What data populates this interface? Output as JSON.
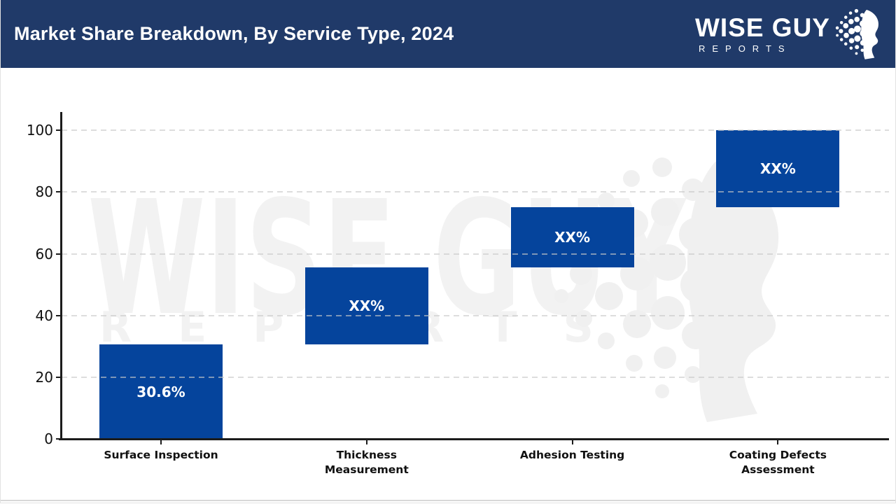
{
  "header": {
    "title": "Market Share Breakdown, By Service Type, 2024",
    "logo_line1": "WISE GUY",
    "logo_line2": "REPORTS"
  },
  "watermark": {
    "line1": "WISE GUY",
    "line2": "REPORTS"
  },
  "colors": {
    "header_bg": "#203a69",
    "bar": "#05449c",
    "axis": "#1c1c1c",
    "grid": "#d8d8d8",
    "bar_label": "#ffffff",
    "watermark": "#f2f2f2"
  },
  "chart_data": {
    "type": "bar",
    "variant": "waterfall",
    "title": "Market Share Breakdown, By Service Type, 2024",
    "categories": [
      "Surface Inspection",
      "Thickness\nMeasurement",
      "Adhesion Testing",
      "Coating Defects\nAssessment"
    ],
    "segments": [
      {
        "category": "Surface Inspection",
        "start": 0,
        "end": 30.6,
        "label": "30.6%"
      },
      {
        "category": "Thickness Measurement",
        "start": 30.6,
        "end": 55.5,
        "label": "XX%"
      },
      {
        "category": "Adhesion Testing",
        "start": 55.5,
        "end": 75.0,
        "label": "XX%"
      },
      {
        "category": "Coating Defects Assessment",
        "start": 75.0,
        "end": 100.0,
        "label": "XX%"
      }
    ],
    "y_ticks": [
      0,
      20,
      40,
      60,
      80,
      100
    ],
    "ylim": [
      0,
      106
    ],
    "xlabel": "",
    "ylabel": "",
    "legend": "none",
    "grid": "horizontal-dashed"
  }
}
